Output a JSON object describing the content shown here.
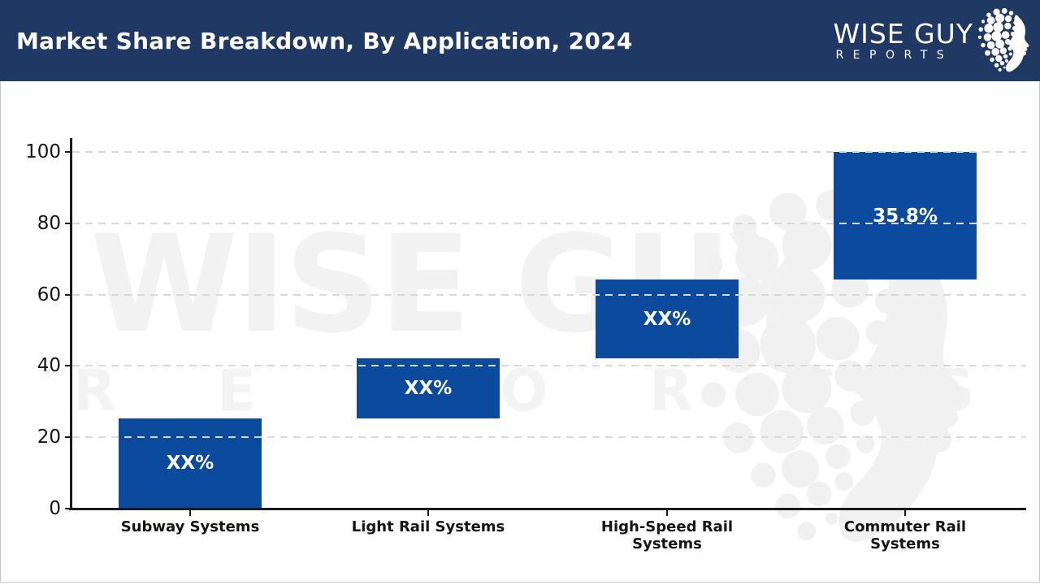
{
  "header": {
    "title": "Market Share Breakdown, By Application, 2024",
    "logo_line1": "WISE GUY",
    "logo_line2": "REPORTS"
  },
  "watermark": {
    "line1": "WISE GUY",
    "line2": "R E P O R T S"
  },
  "chart_data": {
    "type": "bar",
    "variant": "waterfall",
    "title": "Market Share Breakdown, By Application, 2024",
    "categories": [
      "Subway Systems",
      "Light Rail Systems",
      "High-Speed Rail Systems",
      "Commuter Rail Systems"
    ],
    "segment_start": [
      0,
      25.3,
      42.1,
      64.2
    ],
    "segment_end": [
      25.3,
      42.1,
      64.2,
      100
    ],
    "values": [
      25.3,
      16.8,
      22.1,
      35.8
    ],
    "bar_labels": [
      "XX%",
      "XX%",
      "XX%",
      "35.8%"
    ],
    "yticks": [
      0,
      20,
      40,
      60,
      80,
      100
    ],
    "ylim": [
      0,
      100
    ],
    "xlabel": "",
    "ylabel": "",
    "grid": "horizontal-dashed",
    "legend": "none",
    "colors": {
      "header_bg": "#203864",
      "bar": "#0c4a9e",
      "grid": "#d9d9d9",
      "axis": "#1a1a1a",
      "text": "#141414",
      "watermark": "#f2f2f2",
      "logo": "#ffffff",
      "border": "#c8c8c8"
    }
  }
}
